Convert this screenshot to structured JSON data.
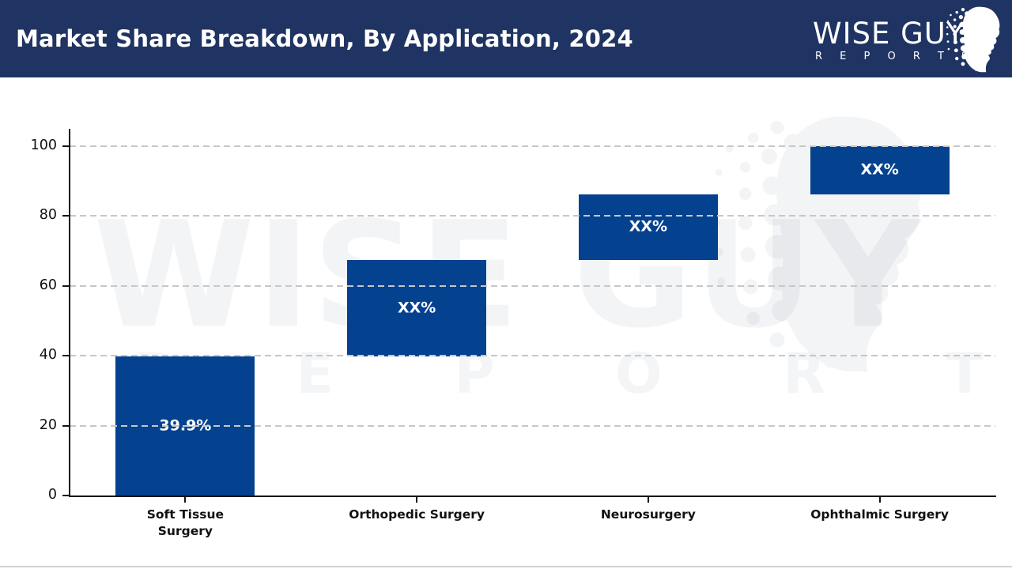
{
  "header": {
    "title": "Market Share Breakdown, By Application, 2024",
    "logo_line1": "WISE GUY",
    "logo_line2": "R E P O R T S"
  },
  "watermark": {
    "line1": "WISE GUY",
    "line2": "R E P O R T S"
  },
  "chart_data": {
    "type": "bar",
    "subtype": "waterfall",
    "title": "Market Share Breakdown, By Application, 2024",
    "categories": [
      "Soft Tissue\nSurgery",
      "Orthopedic Surgery",
      "Neurosurgery",
      "Ophthalmic Surgery"
    ],
    "segments": [
      {
        "category": "Soft Tissue Surgery",
        "start": 0,
        "end": 39.9,
        "label": "39.9%"
      },
      {
        "category": "Orthopedic Surgery",
        "start": 39.9,
        "end": 67.5,
        "label": "XX%"
      },
      {
        "category": "Neurosurgery",
        "start": 67.5,
        "end": 86.3,
        "label": "XX%"
      },
      {
        "category": "Ophthalmic Surgery",
        "start": 86.3,
        "end": 100,
        "label": "XX%"
      }
    ],
    "yticks": [
      0,
      20,
      40,
      60,
      80,
      100
    ],
    "ylim": [
      0,
      105
    ],
    "grid": true,
    "grid_style": "dashed",
    "legend_position": "none",
    "xlabel": "",
    "ylabel": ""
  },
  "colors": {
    "header_bg": "#203463",
    "bar": "#04418f",
    "axis": "#151515",
    "grid": "#c7c7c7",
    "bar_label": "#ffffff",
    "footer_line": "#d2d2d2"
  }
}
